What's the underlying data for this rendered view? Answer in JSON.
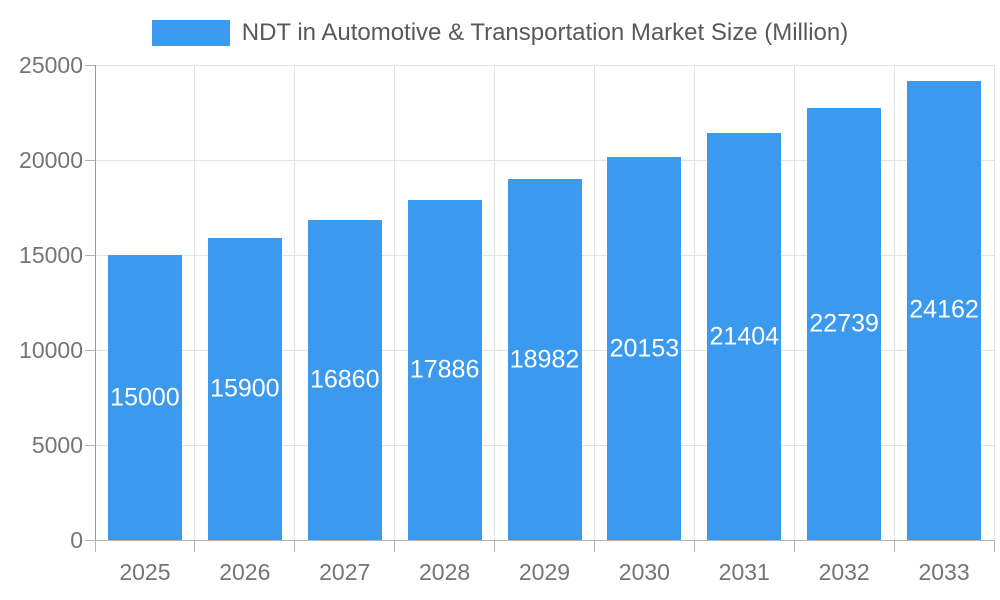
{
  "chart_data": {
    "type": "bar",
    "title": "NDT in Automotive & Transportation Market Size (Million)",
    "legend": {
      "position": "top",
      "entries": [
        "NDT in Automotive & Transportation Market Size (Million)"
      ]
    },
    "categories": [
      "2025",
      "2026",
      "2027",
      "2028",
      "2029",
      "2030",
      "2031",
      "2032",
      "2033"
    ],
    "values": [
      15000,
      15900,
      16860,
      17886,
      18982,
      20153,
      21404,
      22739,
      24162
    ],
    "value_labels": [
      "15000",
      "15900",
      "16860",
      "17886",
      "18982",
      "20153",
      "21404",
      "22739",
      "24162"
    ],
    "xlabel": "",
    "ylabel": "",
    "ylim": [
      0,
      25000
    ],
    "yticks": [
      0,
      5000,
      10000,
      15000,
      20000,
      25000
    ],
    "ytick_labels": [
      "0",
      "5000",
      "10000",
      "15000",
      "20000",
      "25000"
    ],
    "grid": true,
    "colors": {
      "bar": "#3b99ee",
      "grid": "#e3e3e3",
      "axis_line": "#b3b3b3",
      "y_axis_line": "#999999",
      "axis_text": "#757575",
      "title_text": "#595959",
      "value_label": "#ffffff",
      "background": "#ffffff"
    }
  }
}
